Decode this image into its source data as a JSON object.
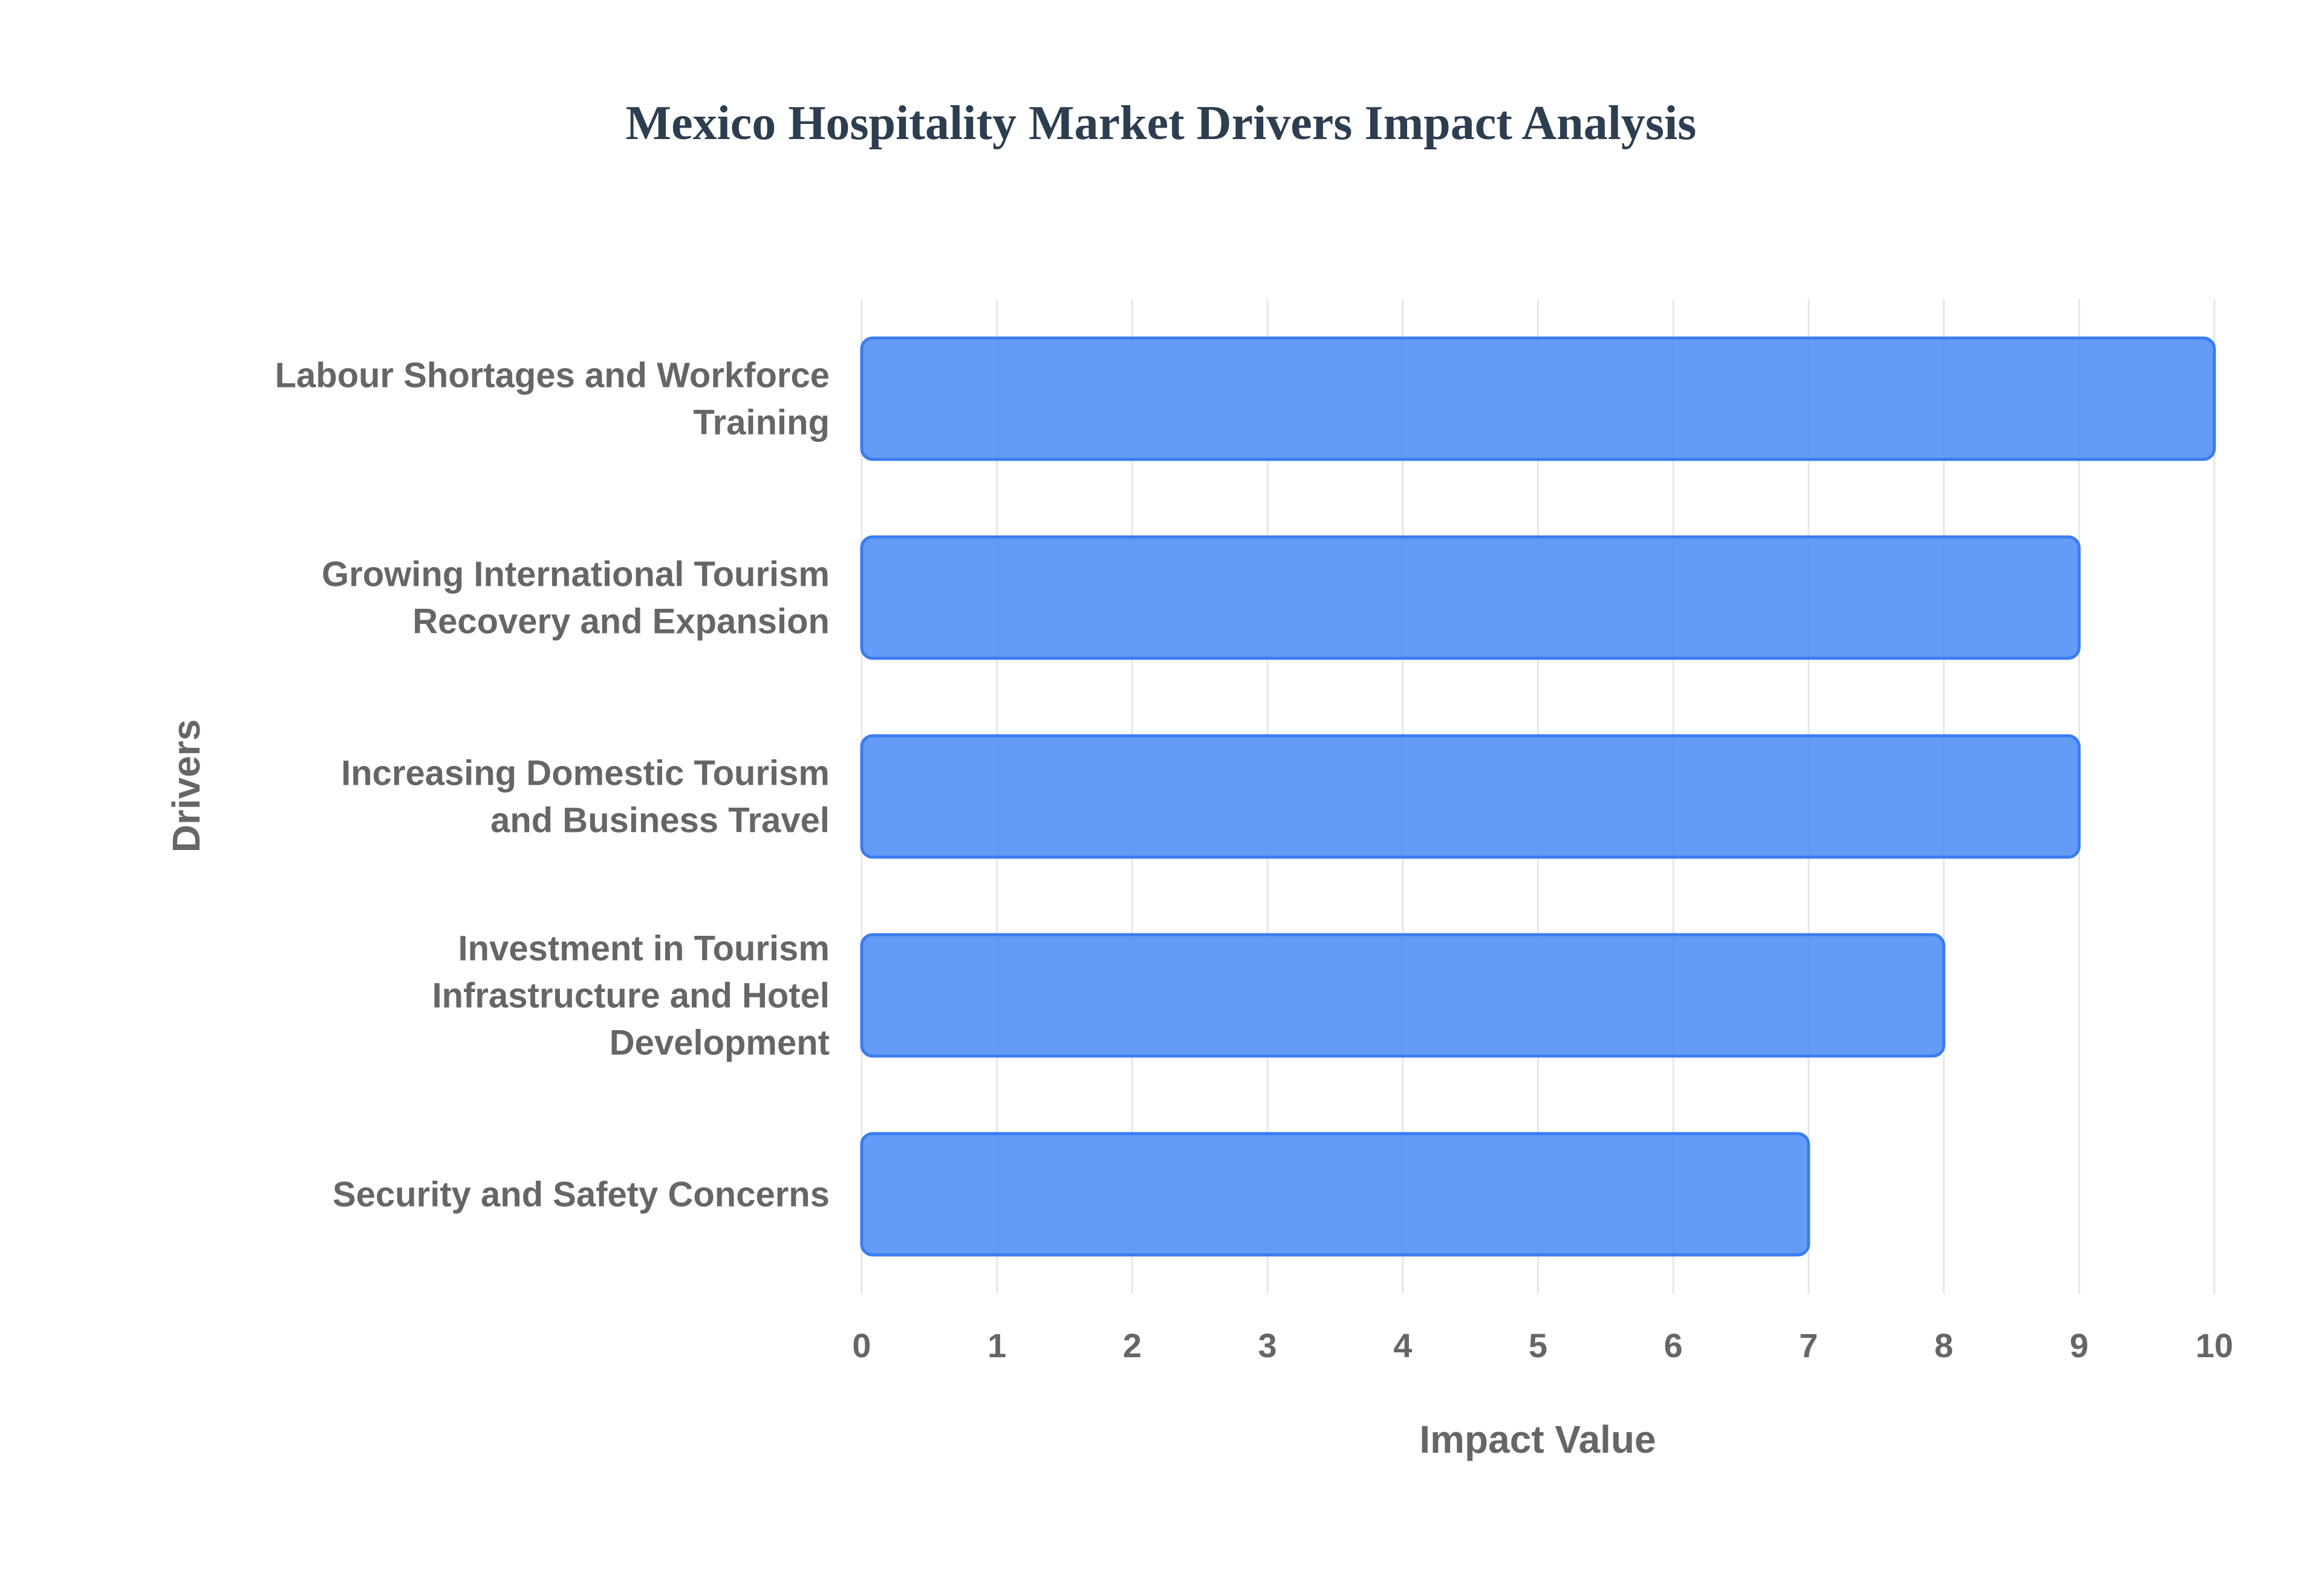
{
  "chart_data": {
    "type": "bar",
    "orientation": "horizontal",
    "title": "Mexico Hospitality Market Drivers Impact Analysis",
    "xlabel": "Impact Value",
    "ylabel": "Drivers",
    "categories": [
      [
        "Labour Shortages and Workforce",
        "Training"
      ],
      [
        "Growing International Tourism",
        "Recovery and Expansion"
      ],
      [
        "Increasing Domestic Tourism",
        "and Business Travel"
      ],
      [
        "Investment in Tourism",
        "Infrastructure and Hotel",
        "Development"
      ],
      [
        "Security and Safety Concerns"
      ]
    ],
    "values": [
      10,
      9,
      9,
      8,
      7
    ],
    "xlim": [
      0,
      10
    ],
    "x_ticks": [
      "0",
      "1",
      "2",
      "3",
      "4",
      "5",
      "6",
      "7",
      "8",
      "9",
      "10"
    ],
    "grid": true,
    "legend": "none",
    "colors": {
      "bar_fill": "#4f8df5",
      "bar_stroke": "#3b7cf0",
      "title": "#2c3e50",
      "labels": "#666666"
    }
  }
}
